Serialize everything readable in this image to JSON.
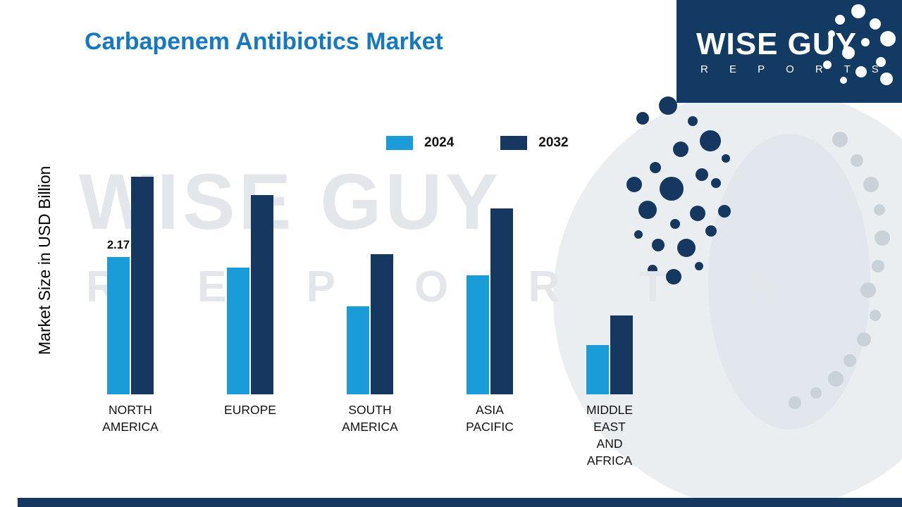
{
  "page": {
    "title": "Carbapenem Antibiotics Market"
  },
  "logo": {
    "line1": "WISE GUY",
    "line2": "R E P O R T S"
  },
  "watermark": {
    "line1": "WISE GUY",
    "line2": "R E P O R T S"
  },
  "colors": {
    "title_blue": "#1778c2",
    "series_2024_blue": "#1a9cd8",
    "series_2032_navy": "#16375f",
    "logo_navy": "#123a63",
    "watermark_gray": "#e3e7eb",
    "bottom_bar_navy": "#16375f"
  },
  "chart_data": {
    "type": "bar",
    "title": "Carbapenem Antibiotics Market",
    "xlabel": "",
    "ylabel": "Market Size in USD Billion",
    "ylim": [
      0,
      3.6
    ],
    "grid": false,
    "legend_position": "top",
    "categories": [
      "NORTH\nAMERICA",
      "EUROPE",
      "SOUTH\nAMERICA",
      "ASIA\nPACIFIC",
      "MIDDLE\nEAST\nAND\nAFRICA"
    ],
    "series": [
      {
        "name": "2024",
        "color": "#1a9cd8",
        "values": [
          2.17,
          2.0,
          1.39,
          1.88,
          0.78
        ],
        "data_labels": [
          "2.17",
          "",
          "",
          "",
          ""
        ]
      },
      {
        "name": "2032",
        "color": "#16375f",
        "values": [
          3.43,
          3.14,
          2.21,
          2.93,
          1.24
        ],
        "data_labels": [
          "",
          "",
          "",
          "",
          ""
        ]
      }
    ]
  }
}
